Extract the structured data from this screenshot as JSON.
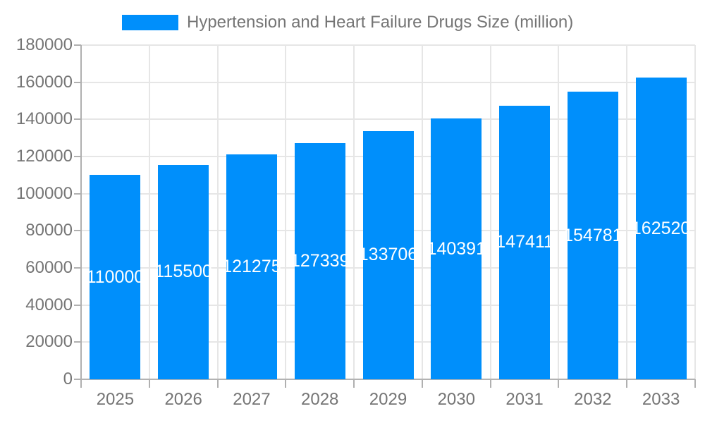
{
  "legend": {
    "label": "Hypertension and Heart Failure Drugs Size (million)"
  },
  "chart_data": {
    "type": "bar",
    "title": "Hypertension and Heart Failure Drugs Size (million)",
    "categories": [
      "2025",
      "2026",
      "2027",
      "2028",
      "2029",
      "2030",
      "2031",
      "2032",
      "2033"
    ],
    "values": [
      110000,
      115500,
      121275,
      127339,
      133706,
      140391,
      147411,
      154781,
      162520
    ],
    "bar_labels": [
      "110000",
      "115500",
      "121275",
      "127339",
      "133706",
      "140391",
      "147411",
      "154781",
      "162520"
    ],
    "xlabel": "",
    "ylabel": "",
    "ylim": [
      0,
      180000
    ],
    "ytick_step": 20000,
    "ytick_labels": [
      "0",
      "20000",
      "40000",
      "60000",
      "80000",
      "100000",
      "120000",
      "140000",
      "160000",
      "180000"
    ],
    "grid": true,
    "legend_position": "top",
    "bar_color": "#008FFB",
    "bar_label_color": "#ffffff",
    "axis_text_color": "#757575",
    "gridline_color": "#e6e6e6",
    "axis_line_color": "#b0b0b0"
  }
}
